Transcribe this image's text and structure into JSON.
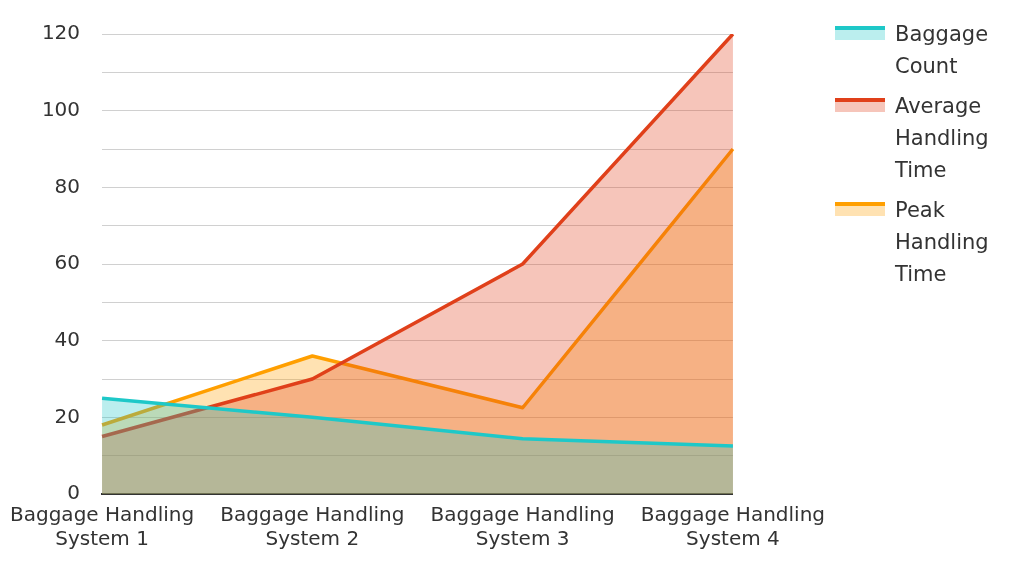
{
  "chart_data": {
    "type": "area",
    "categories": [
      "Baggage Handling System 1",
      "Baggage Handling System 2",
      "Baggage Handling System 3",
      "Baggage Handling System 4"
    ],
    "series": [
      {
        "name": "Baggage Count",
        "color": "#1ec8c8",
        "values": [
          25,
          20,
          14.4,
          12.5
        ]
      },
      {
        "name": "Average Handling Time",
        "color": "#e0401a",
        "values": [
          15,
          30,
          60,
          120
        ]
      },
      {
        "name": "Peak Handling Time",
        "color": "#ff9f00",
        "values": [
          18,
          36,
          22.5,
          90
        ]
      }
    ],
    "ylim": [
      0,
      120
    ],
    "yticks": [
      0,
      {
        "value": 10,
        "label": null
      },
      20,
      {
        "value": 30,
        "label": null
      },
      40,
      {
        "value": 50,
        "label": null
      },
      60,
      {
        "value": 70,
        "label": null
      },
      80,
      {
        "value": 90,
        "label": null
      },
      100,
      {
        "value": 110,
        "label": null
      },
      120
    ],
    "grid": "y",
    "legend": "right"
  }
}
